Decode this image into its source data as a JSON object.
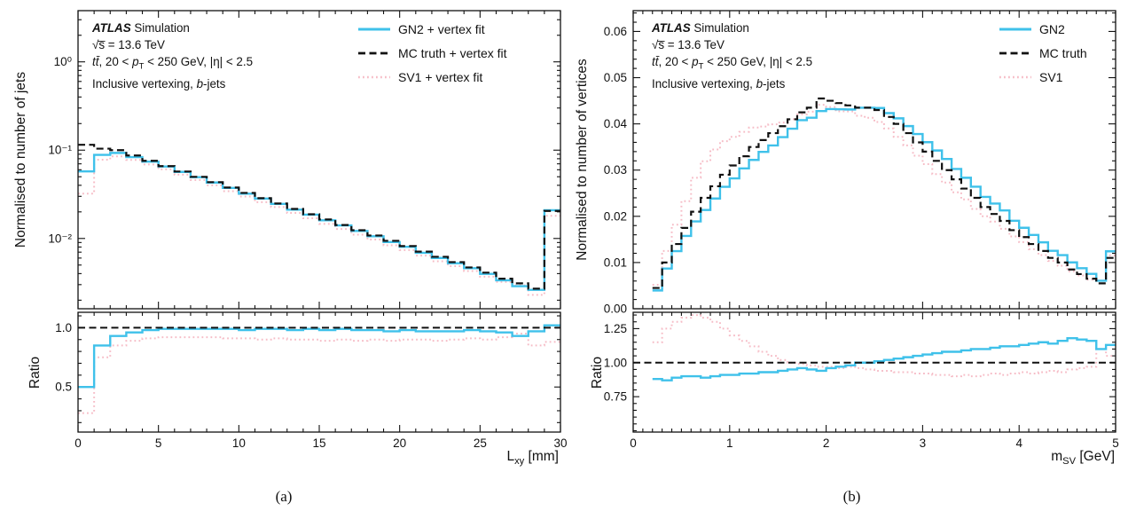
{
  "captions": {
    "a": "(a)",
    "b": "(b)"
  },
  "colors": {
    "gn2": "#3fc1ea",
    "mc": "#111111",
    "sv1": "#f6bcc6"
  },
  "annotations": {
    "atlas": "ATLAS",
    "simulation": " Simulation",
    "sqrt_s": "√s̅ = 13.6 TeV",
    "ttbar": "tt̄",
    "cuts_mid": ", 20 < ",
    "p_italic": "p",
    "pt_sub": "T",
    "cuts_post": " < 250 GeV, |η| < 2.5",
    "selection_pre": "Inclusive vertexing, ",
    "selection_b": "b",
    "selection_post": "-jets"
  },
  "chart_data": [
    {
      "name": "lxy-distribution",
      "type": "step-histogram",
      "ylabel": "Normalised to number of jets",
      "ratio_label": "Ratio",
      "xlabel": {
        "pre": "L",
        "sub": "xy",
        "post": " [mm]"
      },
      "x_range": [
        0,
        30
      ],
      "first_edge": 0,
      "bin_width": 1,
      "x_ticks": [
        0,
        5,
        10,
        15,
        20,
        25,
        30
      ],
      "x_tick_labels": [
        "0",
        "5",
        "10",
        "15",
        "20",
        "25",
        "30"
      ],
      "x_minor": 1,
      "y_scale": "log",
      "y_range": [
        0.0016,
        3.8
      ],
      "y_ticks": [
        0.01,
        0.1,
        1
      ],
      "y_tick_labels": [
        "10⁻²",
        "10⁻¹",
        "10⁰"
      ],
      "ratio_range": [
        0.12,
        1.13
      ],
      "ratio_ticks": [
        0.5,
        1.0
      ],
      "ratio_tick_labels": [
        "0.5",
        "1.0"
      ],
      "ratio_minor": 0.1,
      "series": [
        {
          "key": "gn2",
          "name": "GN2 + vertex fit",
          "style": "solid",
          "ratio_to_mc": [
            0.5,
            0.85,
            0.93,
            0.96,
            0.98,
            0.99,
            0.99,
            0.99,
            0.99,
            0.99,
            0.98,
            0.99,
            0.99,
            0.98,
            0.99,
            0.98,
            0.99,
            0.98,
            0.98,
            0.97,
            0.98,
            0.97,
            0.97,
            0.97,
            0.98,
            0.97,
            0.96,
            0.93,
            0.97,
            1.02
          ]
        },
        {
          "key": "mc",
          "name": "MC truth + vertex fit",
          "style": "dashed",
          "reference": true,
          "values": [
            0.115,
            0.104,
            0.1,
            0.087,
            0.0757,
            0.0659,
            0.0573,
            0.0499,
            0.0434,
            0.0377,
            0.0328,
            0.0286,
            0.0249,
            0.0216,
            0.0188,
            0.0164,
            0.0142,
            0.0124,
            0.0108,
            0.0094,
            0.0082,
            0.0071,
            0.0062,
            0.0054,
            0.0047,
            0.0041,
            0.0035,
            0.0031,
            0.0027,
            0.0205
          ]
        },
        {
          "key": "sv1",
          "name": "SV1 + vertex fit",
          "style": "dotted",
          "ratio_to_mc": [
            0.28,
            0.75,
            0.85,
            0.89,
            0.91,
            0.92,
            0.92,
            0.92,
            0.92,
            0.91,
            0.91,
            0.9,
            0.91,
            0.9,
            0.9,
            0.89,
            0.9,
            0.89,
            0.9,
            0.89,
            0.9,
            0.9,
            0.89,
            0.9,
            0.91,
            0.9,
            0.92,
            0.95,
            0.85,
            0.88
          ]
        }
      ]
    },
    {
      "name": "msv-distribution",
      "type": "step-histogram",
      "ylabel": "Normalised to number of vertices",
      "ratio_label": "Ratio",
      "xlabel": {
        "pre": "m",
        "sub": "SV",
        "post": " [GeV]"
      },
      "x_range": [
        0,
        5
      ],
      "first_edge": 0.2,
      "bin_width": 0.1,
      "x_ticks": [
        0,
        1,
        2,
        3,
        4,
        5
      ],
      "x_tick_labels": [
        "0",
        "1",
        "2",
        "3",
        "4",
        "5"
      ],
      "x_minor": 0.1,
      "y_scale": "linear",
      "y_range": [
        0,
        0.0645
      ],
      "y_ticks": [
        0,
        0.01,
        0.02,
        0.03,
        0.04,
        0.05,
        0.06
      ],
      "y_tick_labels": [
        "0.00",
        "0.01",
        "0.02",
        "0.03",
        "0.04",
        "0.05",
        "0.06"
      ],
      "y_minor": 0.002,
      "ratio_range": [
        0.49,
        1.37
      ],
      "ratio_ticks": [
        0.75,
        1.0,
        1.25
      ],
      "ratio_tick_labels": [
        "0.75",
        "1.00",
        "1.25"
      ],
      "ratio_minor": 0.05,
      "series": [
        {
          "key": "gn2",
          "name": "GN2",
          "style": "solid",
          "ratio_to_mc": [
            0.88,
            0.87,
            0.89,
            0.9,
            0.9,
            0.89,
            0.9,
            0.91,
            0.91,
            0.92,
            0.92,
            0.93,
            0.93,
            0.94,
            0.95,
            0.96,
            0.95,
            0.94,
            0.96,
            0.97,
            0.98,
            1.0,
            1.0,
            1.01,
            1.02,
            1.03,
            1.04,
            1.05,
            1.06,
            1.07,
            1.08,
            1.08,
            1.09,
            1.1,
            1.1,
            1.11,
            1.12,
            1.12,
            1.13,
            1.14,
            1.15,
            1.14,
            1.16,
            1.18,
            1.17,
            1.16,
            1.1,
            1.13
          ]
        },
        {
          "key": "mc",
          "name": "MC truth",
          "style": "dashed",
          "reference": true,
          "values": [
            0.0045,
            0.01,
            0.014,
            0.0175,
            0.021,
            0.024,
            0.0265,
            0.029,
            0.031,
            0.033,
            0.035,
            0.0365,
            0.038,
            0.0395,
            0.041,
            0.0425,
            0.0435,
            0.0455,
            0.045,
            0.0445,
            0.044,
            0.0435,
            0.0435,
            0.043,
            0.0415,
            0.04,
            0.038,
            0.036,
            0.034,
            0.032,
            0.03,
            0.028,
            0.026,
            0.024,
            0.022,
            0.0205,
            0.019,
            0.017,
            0.0155,
            0.014,
            0.0125,
            0.011,
            0.01,
            0.0085,
            0.0075,
            0.0065,
            0.0055,
            0.011
          ]
        },
        {
          "key": "sv1",
          "name": "SV1",
          "style": "dotted",
          "ratio_to_mc": [
            1.15,
            1.25,
            1.3,
            1.33,
            1.35,
            1.33,
            1.3,
            1.25,
            1.2,
            1.16,
            1.12,
            1.08,
            1.05,
            1.02,
            1.0,
            0.99,
            0.98,
            0.97,
            0.97,
            0.96,
            0.97,
            0.96,
            0.95,
            0.94,
            0.94,
            0.93,
            0.93,
            0.92,
            0.92,
            0.91,
            0.91,
            0.9,
            0.91,
            0.9,
            0.91,
            0.92,
            0.91,
            0.92,
            0.93,
            0.92,
            0.93,
            0.94,
            0.93,
            0.95,
            0.96,
            0.97,
            1.1,
            1.05
          ]
        }
      ]
    }
  ]
}
